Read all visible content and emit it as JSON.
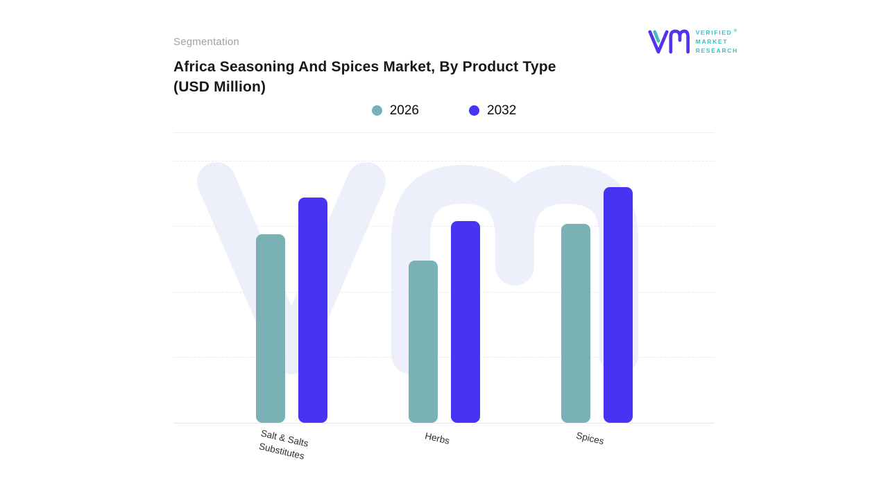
{
  "header": {
    "eyebrow": "Segmentation"
  },
  "brand": {
    "name": "Verified Market Research",
    "lines": [
      "VERIFIED",
      "MARKET",
      "RESEARCH"
    ],
    "registered_mark": "®",
    "teal": "#3bbfc0",
    "purple": "#5433eb"
  },
  "chart_data": {
    "type": "bar",
    "title": "Africa Seasoning And Spices Market, By Product Type (USD Million)",
    "categories": [
      "Salt & Salts Substitutes",
      "Herbs",
      "Spices"
    ],
    "series": [
      {
        "name": "2026",
        "color": "#79b1b4",
        "values": [
          72,
          62,
          76
        ]
      },
      {
        "name": "2032",
        "color": "#4734f3",
        "values": [
          86,
          77,
          90
        ]
      }
    ],
    "ylim": [
      0,
      100
    ],
    "value_units": "relative bar height % (y-axis unlabeled in source)",
    "xlabel": "",
    "ylabel": "",
    "grid": "horizontal dashed",
    "legend_position": "top-center",
    "watermark": "VMR logo watermark behind plot"
  }
}
